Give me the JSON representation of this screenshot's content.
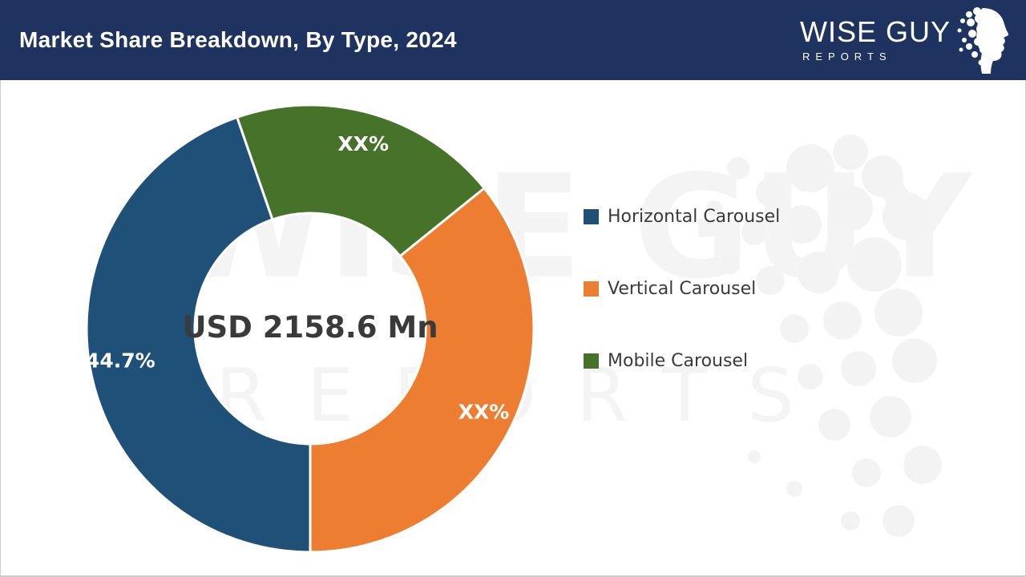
{
  "header": {
    "title": "Market Share Breakdown, By Type, 2024",
    "logo": {
      "brand": "WISE GUY",
      "sub": "REPORTS"
    }
  },
  "watermark": {
    "brand": "WISE GUY",
    "sub": "REPORTS"
  },
  "chart_data": {
    "type": "donut",
    "title": "Market Share Breakdown, By Type, 2024",
    "center_label": "USD 2158.6 Mn",
    "start_angle_clock_deg": 180,
    "direction": "clockwise",
    "legend_position": "right",
    "segments": [
      {
        "name": "Horizontal Carousel",
        "pct": 44.7,
        "label": "44.7%",
        "color": "#1E5078"
      },
      {
        "name": "Mobile Carousel",
        "pct": 19.5,
        "label": "XX%",
        "color": "#46722A"
      },
      {
        "name": "Vertical Carousel",
        "pct": 35.8,
        "label": "XX%",
        "color": "#ED7D31"
      }
    ]
  },
  "legend": {
    "items": [
      {
        "label": "Horizontal Carousel",
        "color": "#1E5078"
      },
      {
        "label": "Vertical Carousel",
        "color": "#ED7D31"
      },
      {
        "label": "Mobile Carousel",
        "color": "#46722A"
      }
    ]
  }
}
